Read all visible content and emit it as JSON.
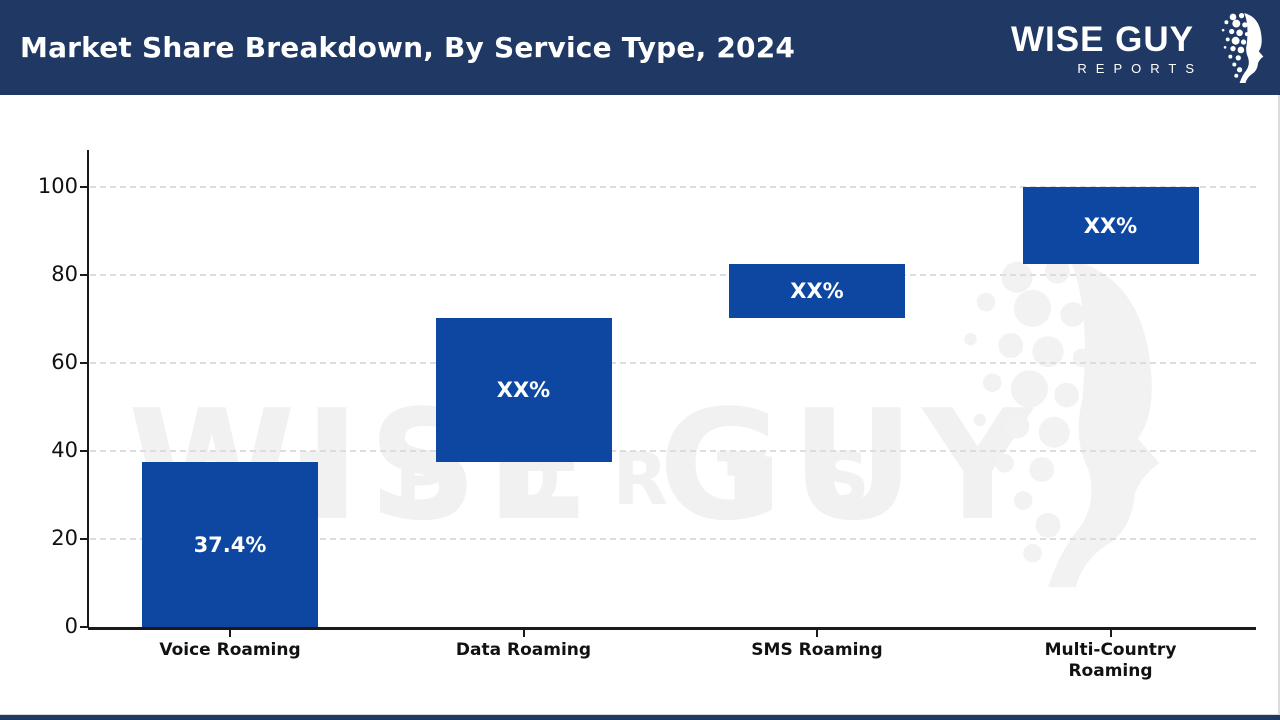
{
  "header": {
    "title": "Market Share Breakdown, By Service Type, 2024",
    "bg_color": "#1f3864",
    "logo": {
      "name": "WISE GUY",
      "subtitle": "REPORTS"
    }
  },
  "watermark": {
    "line1": "WISE GUY",
    "line2": "REPORTS"
  },
  "chart_data": {
    "type": "bar",
    "subtype": "waterfall",
    "title": "Market Share Breakdown, By Service Type, 2024",
    "categories": [
      "Voice Roaming",
      "Data Roaming",
      "SMS Roaming",
      "Multi-Country Roaming"
    ],
    "segments": [
      {
        "category": "Voice Roaming",
        "start": 0,
        "end": 37.4,
        "value": 37.4,
        "label": "37.4%"
      },
      {
        "category": "Data Roaming",
        "start": 37.4,
        "end": 70.3,
        "value": 32.9,
        "label": "XX%"
      },
      {
        "category": "SMS Roaming",
        "start": 70.3,
        "end": 82.4,
        "value": 12.1,
        "label": "XX%"
      },
      {
        "category": "Multi-Country Roaming",
        "start": 82.4,
        "end": 100,
        "value": 17.6,
        "label": "XX%"
      }
    ],
    "y_ticks": [
      0,
      20,
      40,
      60,
      80,
      100
    ],
    "ylim": [
      0,
      107
    ],
    "xlabel": "",
    "ylabel": "",
    "bar_color": "#0d47a1",
    "grid": "horizontal-dashed",
    "gridline_color": "#dddddd",
    "legend": "none"
  }
}
